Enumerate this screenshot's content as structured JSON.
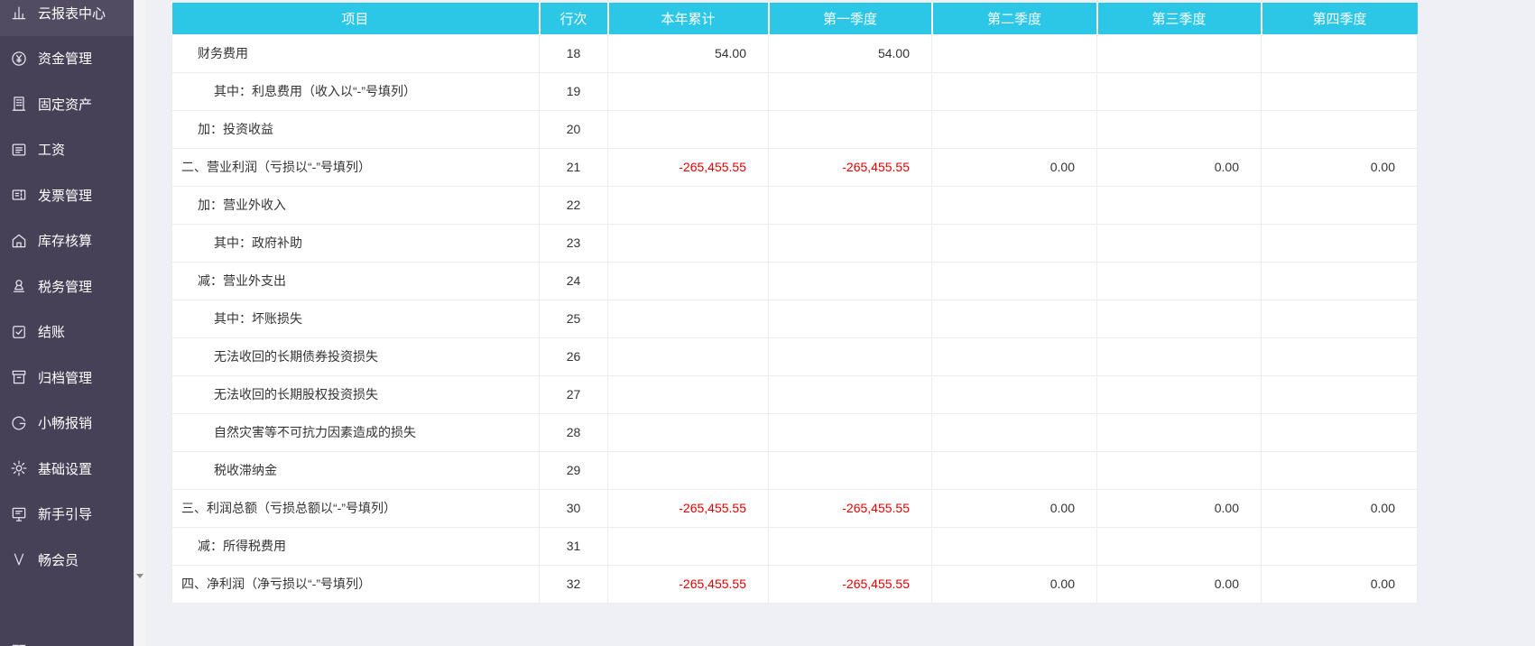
{
  "colors": {
    "sidebar_bg": "#474158",
    "table_header_bg": "#2cc7e6",
    "negative_number": "#e60000",
    "page_bg": "#eef0f5"
  },
  "sidebar": {
    "items": [
      {
        "label": "云报表中心",
        "icon": "report-center-icon"
      },
      {
        "label": "资金管理",
        "icon": "funds-icon"
      },
      {
        "label": "固定资产",
        "icon": "fixed-assets-icon"
      },
      {
        "label": "工资",
        "icon": "salary-icon"
      },
      {
        "label": "发票管理",
        "icon": "invoice-icon"
      },
      {
        "label": "库存核算",
        "icon": "inventory-icon"
      },
      {
        "label": "税务管理",
        "icon": "tax-icon"
      },
      {
        "label": "结账",
        "icon": "closing-icon"
      },
      {
        "label": "归档管理",
        "icon": "archive-icon"
      },
      {
        "label": "小畅报销",
        "icon": "reimburse-icon"
      },
      {
        "label": "基础设置",
        "icon": "settings-icon"
      },
      {
        "label": "新手引导",
        "icon": "guide-icon"
      },
      {
        "label": "畅会员",
        "icon": "member-icon"
      }
    ],
    "partial_bottom_item": {
      "label": "",
      "icon": "grid-icon"
    },
    "scrollbar": {
      "down_arrow": "chevron-down-icon"
    }
  },
  "table": {
    "columns": [
      "项目",
      "行次",
      "本年累计",
      "第一季度",
      "第二季度",
      "第三季度",
      "第四季度"
    ],
    "rows": [
      {
        "item": "财务费用",
        "indent": 1,
        "line": "18",
        "values": [
          "54.00",
          "54.00",
          "",
          "",
          ""
        ]
      },
      {
        "item": "其中：利息费用（收入以“-”号填列）",
        "indent": 2,
        "line": "19",
        "values": [
          "",
          "",
          "",
          "",
          ""
        ]
      },
      {
        "item": "加：投资收益",
        "indent": 1,
        "line": "20",
        "values": [
          "",
          "",
          "",
          "",
          ""
        ]
      },
      {
        "item": "二、营业利润（亏损以“-”号填列）",
        "indent": 0,
        "line": "21",
        "values": [
          "-265,455.55",
          "-265,455.55",
          "0.00",
          "0.00",
          "0.00"
        ]
      },
      {
        "item": "加：营业外收入",
        "indent": 1,
        "line": "22",
        "values": [
          "",
          "",
          "",
          "",
          ""
        ]
      },
      {
        "item": "其中：政府补助",
        "indent": 2,
        "line": "23",
        "values": [
          "",
          "",
          "",
          "",
          ""
        ]
      },
      {
        "item": "减：营业外支出",
        "indent": 1,
        "line": "24",
        "values": [
          "",
          "",
          "",
          "",
          ""
        ]
      },
      {
        "item": "其中：坏账损失",
        "indent": 2,
        "line": "25",
        "values": [
          "",
          "",
          "",
          "",
          ""
        ]
      },
      {
        "item": "无法收回的长期债券投资损失",
        "indent": 2,
        "line": "26",
        "values": [
          "",
          "",
          "",
          "",
          ""
        ]
      },
      {
        "item": "无法收回的长期股权投资损失",
        "indent": 2,
        "line": "27",
        "values": [
          "",
          "",
          "",
          "",
          ""
        ]
      },
      {
        "item": "自然灾害等不可抗力因素造成的损失",
        "indent": 2,
        "line": "28",
        "values": [
          "",
          "",
          "",
          "",
          ""
        ]
      },
      {
        "item": "税收滞纳金",
        "indent": 2,
        "line": "29",
        "values": [
          "",
          "",
          "",
          "",
          ""
        ]
      },
      {
        "item": "三、利润总额（亏损总额以“-”号填列）",
        "indent": 0,
        "line": "30",
        "values": [
          "-265,455.55",
          "-265,455.55",
          "0.00",
          "0.00",
          "0.00"
        ]
      },
      {
        "item": "减：所得税费用",
        "indent": 1,
        "line": "31",
        "values": [
          "",
          "",
          "",
          "",
          ""
        ]
      },
      {
        "item": "四、净利润（净亏损以“-”号填列）",
        "indent": 0,
        "line": "32",
        "values": [
          "-265,455.55",
          "-265,455.55",
          "0.00",
          "0.00",
          "0.00"
        ]
      }
    ]
  }
}
